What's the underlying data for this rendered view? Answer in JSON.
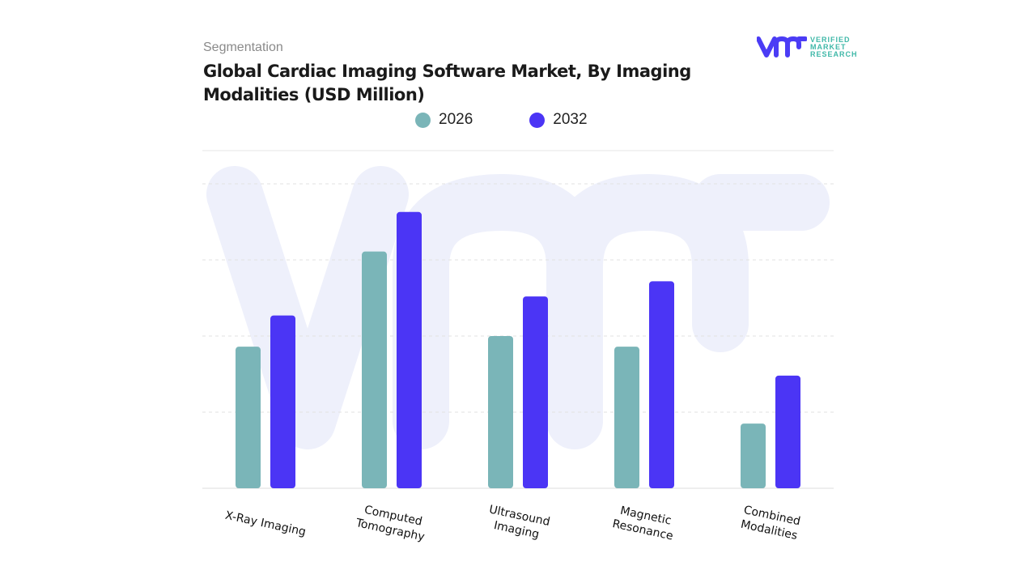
{
  "header": {
    "segment_label": "Segmentation",
    "title": "Global Cardiac Imaging Software Market, By Imaging Modalities (USD Million)"
  },
  "logo": {
    "text_lines": [
      "VERIFIED",
      "MARKET",
      "RESEARCH"
    ],
    "brand_color": "#4b3cf5",
    "text_color": "#3fb8a8"
  },
  "chart_data": {
    "type": "bar",
    "title": "Global Cardiac Imaging Software Market, By Imaging Modalities (USD Million)",
    "categories": [
      "X-Ray Imaging",
      "Computed Tomography",
      "Ultrasound Imaging",
      "Magnetic Resonance",
      "Combined Modalities"
    ],
    "series": [
      {
        "name": "2026",
        "color": "#7ab5b8",
        "values": [
          1.86,
          3.11,
          2.0,
          1.86,
          0.85
        ]
      },
      {
        "name": "2032",
        "color": "#4b35f5",
        "values": [
          2.27,
          3.63,
          2.52,
          2.72,
          1.48
        ]
      }
    ],
    "ylim": [
      0,
      4
    ],
    "grid": true,
    "legend": "top",
    "note": "no y-axis tick labels printed; values are relative estimates"
  }
}
